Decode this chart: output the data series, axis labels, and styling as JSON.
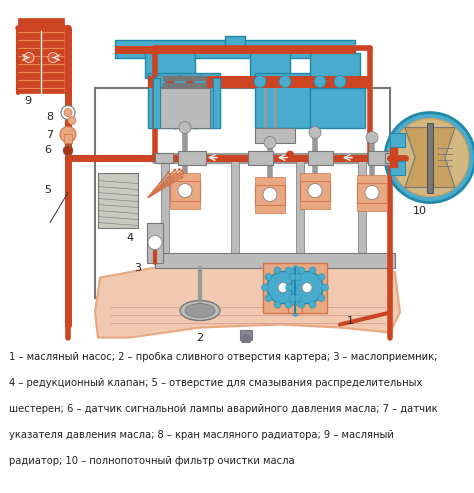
{
  "figure_width": 4.74,
  "figure_height": 4.93,
  "dpi": 100,
  "background_color": "#ffffff",
  "caption_lines": [
    "1 – масляный насос; 2 – пробка сливного отверстия картера; 3 – маслоприемник;",
    "4 – редукционный клапан; 5 – отверстие для смазывания распределительных",
    "шестерен; 6 – датчик сигнальной лампы аварийного давления масла; 7 – датчик",
    "указателя давления масла; 8 – кран масляного радиатора; 9 – масляный",
    "радиатор; 10 – полнопоточный фильтр очистки масла"
  ],
  "caption_fontsize": 7.2,
  "pipe_color": "#cc4422",
  "pipe_color2": "#d4553a",
  "blue_color": "#4aaccc",
  "blue_dark": "#2288aa",
  "orange_color": "#d4734a",
  "salmon_color": "#e8a882",
  "light_salmon": "#f0c9b0",
  "gray_color": "#bbbbbb",
  "gray_med": "#999999",
  "gray_dark": "#777777",
  "tan_color": "#c8a060",
  "tan_light": "#d4b882",
  "black": "#333333",
  "white": "#ffffff",
  "label_color": "#222222"
}
